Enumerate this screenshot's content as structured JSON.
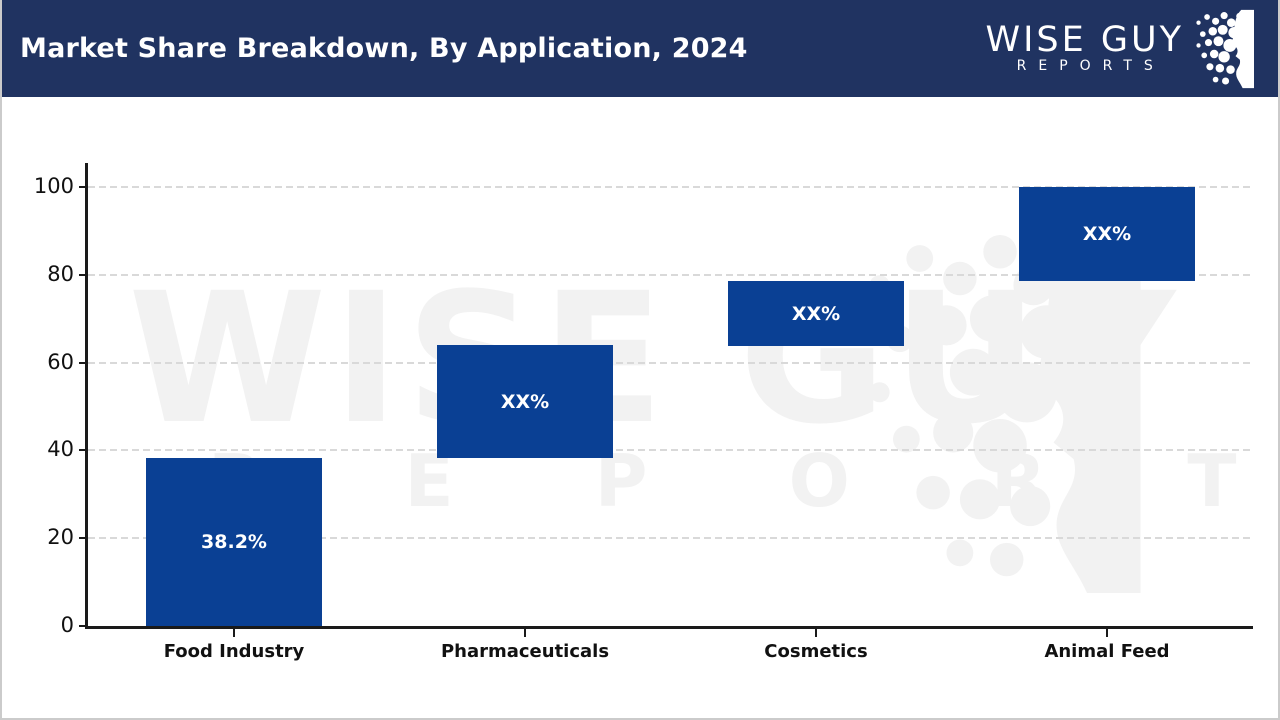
{
  "header": {
    "title": "Market Share Breakdown, By Application, 2024",
    "logo": {
      "line1": "WISE GUY",
      "line2": "REPORTS"
    }
  },
  "watermark": {
    "line1": "WISE GUY",
    "line2": "R E P O R T S"
  },
  "chart_data": {
    "type": "bar",
    "subtype": "waterfall",
    "title": "Market Share Breakdown, By Application, 2024",
    "categories": [
      "Food Industry",
      "Pharmaceuticals",
      "Cosmetics",
      "Animal Feed"
    ],
    "series": [
      {
        "name": "Market share (%)",
        "segments": [
          {
            "category": "Food Industry",
            "start": 0,
            "end": 38.2,
            "value": 38.2,
            "label": "38.2%"
          },
          {
            "category": "Pharmaceuticals",
            "start": 38.2,
            "end": 63.9,
            "value": 25.7,
            "label": "XX%"
          },
          {
            "category": "Cosmetics",
            "start": 63.9,
            "end": 78.6,
            "value": 14.7,
            "label": "XX%"
          },
          {
            "category": "Animal Feed",
            "start": 78.6,
            "end": 100,
            "value": 21.4,
            "label": "XX%"
          }
        ]
      }
    ],
    "y_ticks": [
      0,
      20,
      40,
      60,
      80,
      100
    ],
    "ylim": [
      0,
      105.5
    ],
    "xlabel": "",
    "ylabel": "",
    "grid": "horizontal-dashed",
    "legend": "none",
    "colors": {
      "bar": "#0a4094",
      "bar_label": "#ffffff",
      "axis": "#1a1a1a",
      "gridline": "#d9d9d9",
      "tick_label": "#111111",
      "header_bg": "#203361",
      "watermark": "#f2f2f2"
    }
  }
}
